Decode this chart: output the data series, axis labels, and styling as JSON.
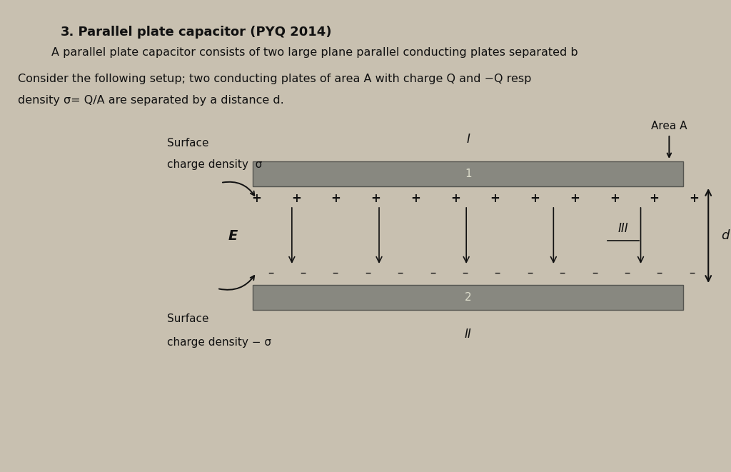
{
  "bg_color": "#c8c0b0",
  "title_num": "3.",
  "title_text": "  Parallel plate capacitor (PYQ 2014)",
  "line1": "A parallel plate capacitor consists of two large plane parallel conducting plates separated b",
  "line2": "Consider the following setup; two conducting plates of area A with charge Q and −Q resp",
  "line3": "density σ= Q/A are separated by a distance d.",
  "plate_color": "#888880",
  "plate_edge_color": "#555550",
  "label_I": "I",
  "label_II": "II",
  "label_III": "III",
  "label_1": "1",
  "label_2": "2",
  "label_d": "d",
  "label_AreaA": "Area A",
  "label_E": "E",
  "label_surf_top_1": "Surface",
  "label_surf_top_2": "charge density  σ",
  "label_surf_bot_1": "Surface",
  "label_surf_bot_2": "charge density − σ",
  "text_color": "#111111",
  "arrow_color": "#111111",
  "plus_color": "#111111",
  "minus_color": "#111111"
}
